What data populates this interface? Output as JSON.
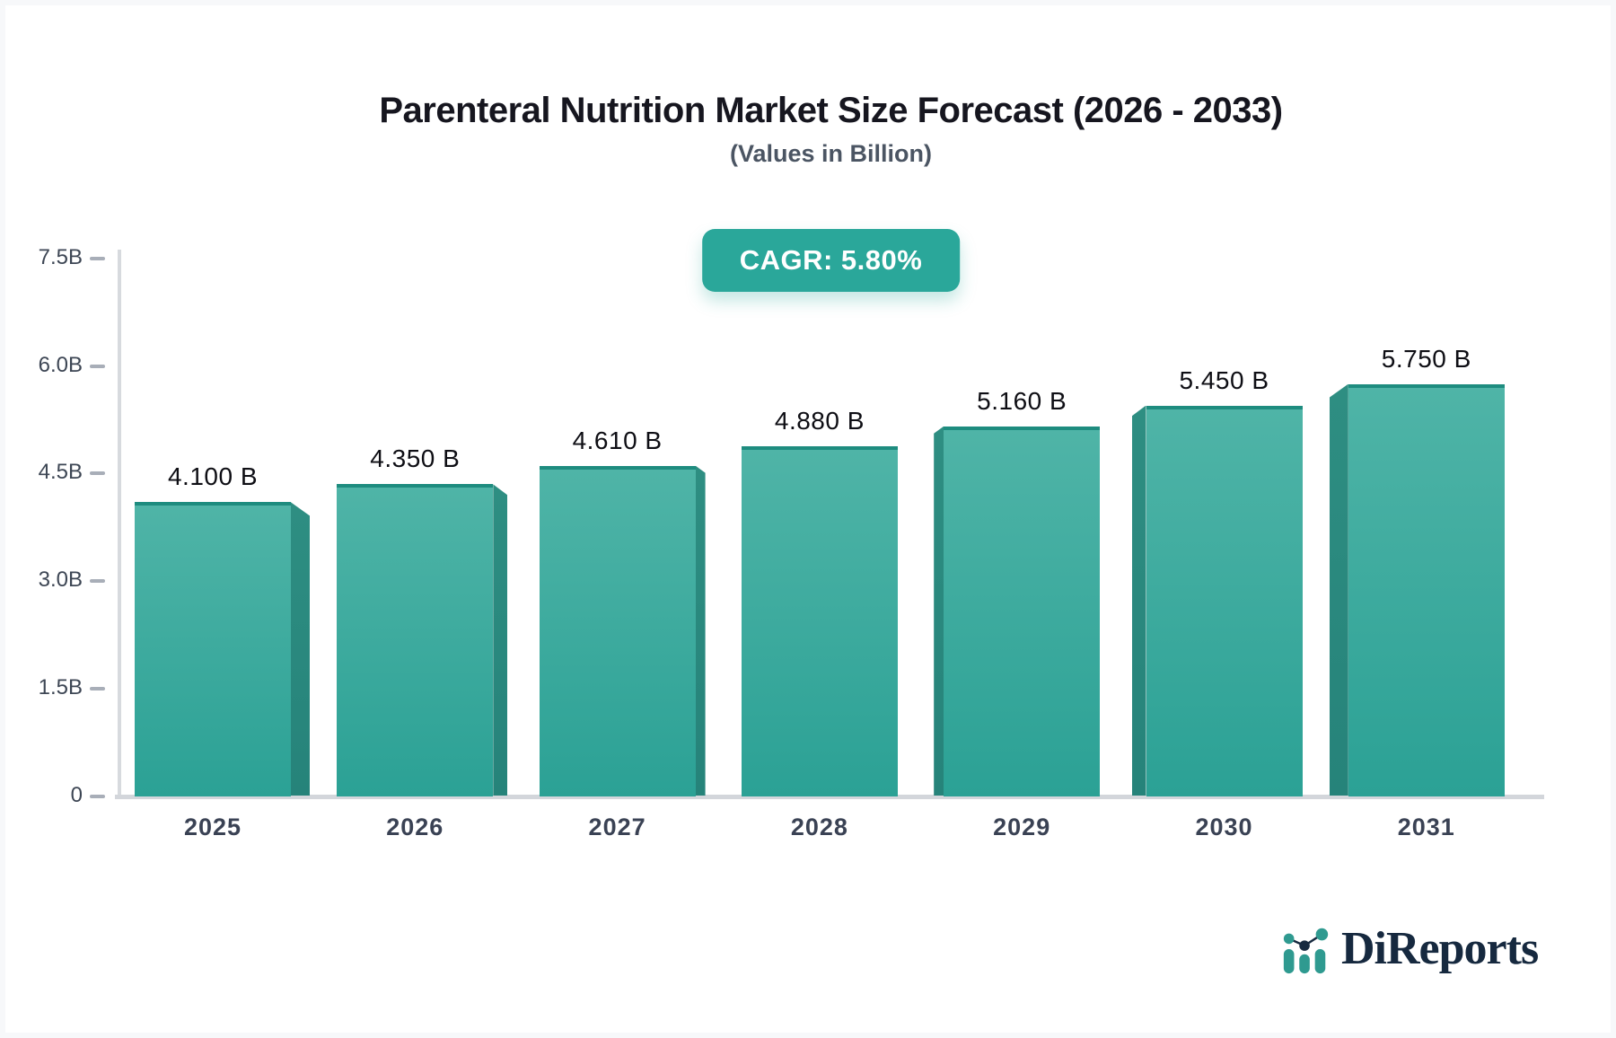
{
  "title": "Parenteral Nutrition Market Size Forecast (2026 - 2033)",
  "subtitle": "(Values in Billion)",
  "cagr_badge": "CAGR: 5.80%",
  "chart_data": {
    "type": "bar",
    "title": "Parenteral Nutrition Market Size Forecast (2026 - 2033)",
    "subtitle": "(Values in Billion)",
    "categories": [
      "2025",
      "2026",
      "2027",
      "2028",
      "2029",
      "2030",
      "2031"
    ],
    "values": [
      4.1,
      4.35,
      4.61,
      4.88,
      5.16,
      5.45,
      5.75
    ],
    "value_labels": [
      "4.100 B",
      "4.350 B",
      "4.610 B",
      "4.880 B",
      "5.160 B",
      "5.450 B",
      "5.750 B"
    ],
    "xlabel": "",
    "ylabel": "",
    "ylim": [
      0,
      7.5
    ],
    "y_tick_values": [
      7.5,
      6.0,
      4.5,
      3.0,
      1.5,
      0
    ],
    "y_tick_labels": [
      "7.5B",
      "6.0B",
      "4.5B",
      "3.0B",
      "1.5B",
      "0"
    ],
    "grid": false,
    "legend": null,
    "annotations": [
      "CAGR: 5.80%"
    ],
    "style": "3d-perspective-bars-center-vanishing-point"
  },
  "branding": {
    "logo_text": "DiReports",
    "logo_icon": "bar-chart-logo-icon"
  },
  "colors": {
    "accent_teal": "#2aa79a",
    "bar_gradient_top": "#4fb4a7",
    "bar_gradient_bottom": "#2ba195",
    "bar_side_top": "#2e8e82",
    "bar_side_bottom": "#26837a",
    "bar_top_border": "#1e8c7f",
    "axis_line": "#d7dade",
    "tick_mark": "#a8aeb8",
    "value_label_text": "#0e0e14",
    "axis_label_text": "#3d4654",
    "title_text": "#16161f",
    "subtitle_text": "#4b5563",
    "badge_text": "#ffffff",
    "logo_navy": "#16293f",
    "logo_teal": "#2f9a90"
  }
}
